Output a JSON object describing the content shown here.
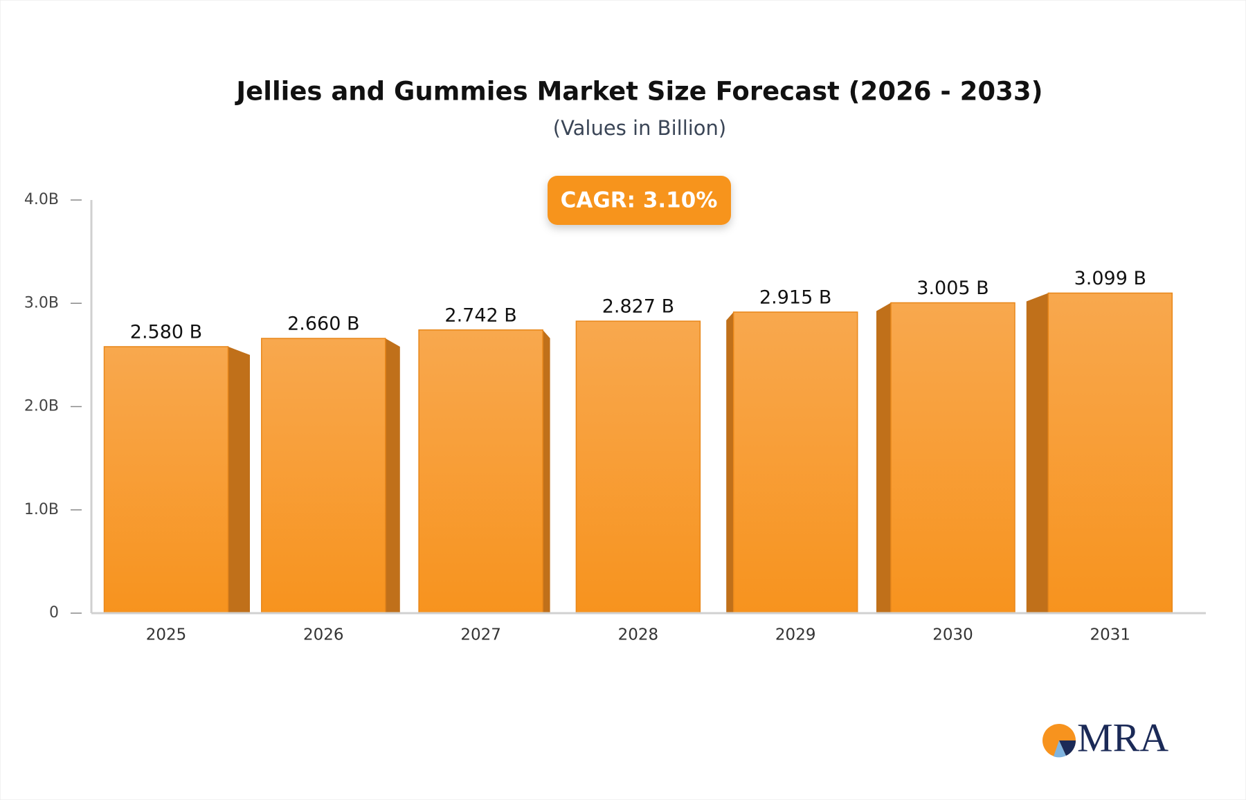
{
  "chart_data": {
    "type": "bar",
    "title": "Jellies and Gummies Market Size Forecast (2026 - 2033)",
    "subtitle": "(Values in Billion)",
    "annotation": "CAGR: 3.10%",
    "categories": [
      "2025",
      "2026",
      "2027",
      "2028",
      "2029",
      "2030",
      "2031"
    ],
    "values": [
      2.58,
      2.66,
      2.742,
      2.827,
      2.915,
      3.005,
      3.099
    ],
    "value_labels": [
      "2.580 B",
      "2.660 B",
      "2.742 B",
      "2.827 B",
      "2.915 B",
      "3.005 B",
      "3.099 B"
    ],
    "color": "#f7981f",
    "ylim": [
      0,
      4
    ],
    "yticks": [
      0,
      {
        "value": 1,
        "label": "1.0B"
      },
      {
        "value": 2,
        "label": "2.0B"
      },
      {
        "value": 3,
        "label": "3.0B"
      },
      {
        "value": 4,
        "label": "4.0B"
      }
    ],
    "grid": false
  },
  "logo": "MRA"
}
